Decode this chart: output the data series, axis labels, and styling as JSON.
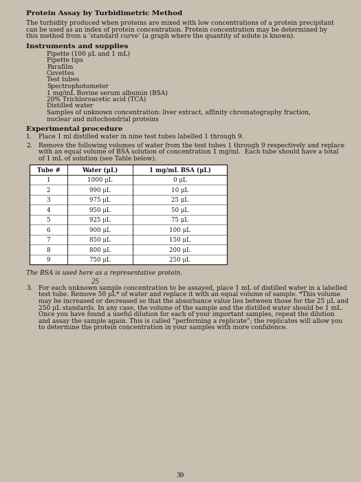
{
  "title": "Protein Assay by Turbidimetric Method",
  "bg_color": "#c8bfb0",
  "text_color": "#111111",
  "intro_text": "The turbidity produced when proteins are mixed with low concentrations of a protein precipitant\ncan be used as an index of protein concentration. Protein concentration may be determined by\nthis method from a ‘standard curve’ (a graph where the quantity of solute is known).",
  "instruments_heading": "Instruments and supplies",
  "instruments_list": [
    "Pipette (100 μL and 1 mL)",
    "Pipette tips",
    "Parafilm",
    "Cuvettes",
    "Test tubes",
    "Spectrophotometer",
    "1 mg/mL Bovine serum albumin (BSA)",
    "20% Trichloroacetic acid (TCA)",
    "Distilled water",
    "Samples of unknown concentration: liver extract, affinity chromatography fraction,",
    "nuclear and mitochondrial proteins"
  ],
  "procedure_heading": "Experimental procedure",
  "step1": "Place 1 ml distilled water in nine test tubes labelled 1 through 9.",
  "step2_intro": "Remove the following volumes of water from the test tubes 1 through 9 respectively and replace\nwith an equal volume of BSA solution of concentration 1 mg/ml.  Each tube should have a total\nof 1 mL of solution (see Table below).",
  "table_headers": [
    "Tube #",
    "Water (μL)",
    "1 mg/mL BSA (μL)"
  ],
  "table_data": [
    [
      "1",
      "1000 μL",
      "0 μL"
    ],
    [
      "2",
      "990 μL",
      "10 μL"
    ],
    [
      "3",
      "975 μL",
      "25 μL"
    ],
    [
      "4",
      "950 μL",
      "50 μL"
    ],
    [
      "5",
      "925 μL",
      "75 μL"
    ],
    [
      "6",
      "900 μL",
      "100 μL"
    ],
    [
      "7",
      "850 μL",
      "150 μL"
    ],
    [
      "8",
      "800 μL",
      "200 μL"
    ],
    [
      "9",
      "750 μL",
      "250 μL"
    ]
  ],
  "table_note": "The BSA is used here as a representative protein.",
  "handwritten_25": "25",
  "step3": "For each unknown sample concentration to be assayed, place 1 mL of distilled water in a labelled\ntest tube. Remove 50 μL* of water and replace it with an equal volume of sample. *This volume\nmay be increased or decreased so that the absorbance value lies between those for the 25 μL and\n250 μL standards. In any case, the volume of the sample and the distilled water should be 1 mL.\nOnce you have found a useful dilution for each of your important samples, repeat the dilution\nand assay the sample again. This is called “performing a replicate”; the replicates will allow you\nto determine the protein concentration in your samples with more confidence.",
  "page_number": "39",
  "title_fontsize": 7.5,
  "heading_fontsize": 7.5,
  "body_fontsize": 6.5,
  "table_fontsize": 6.2
}
